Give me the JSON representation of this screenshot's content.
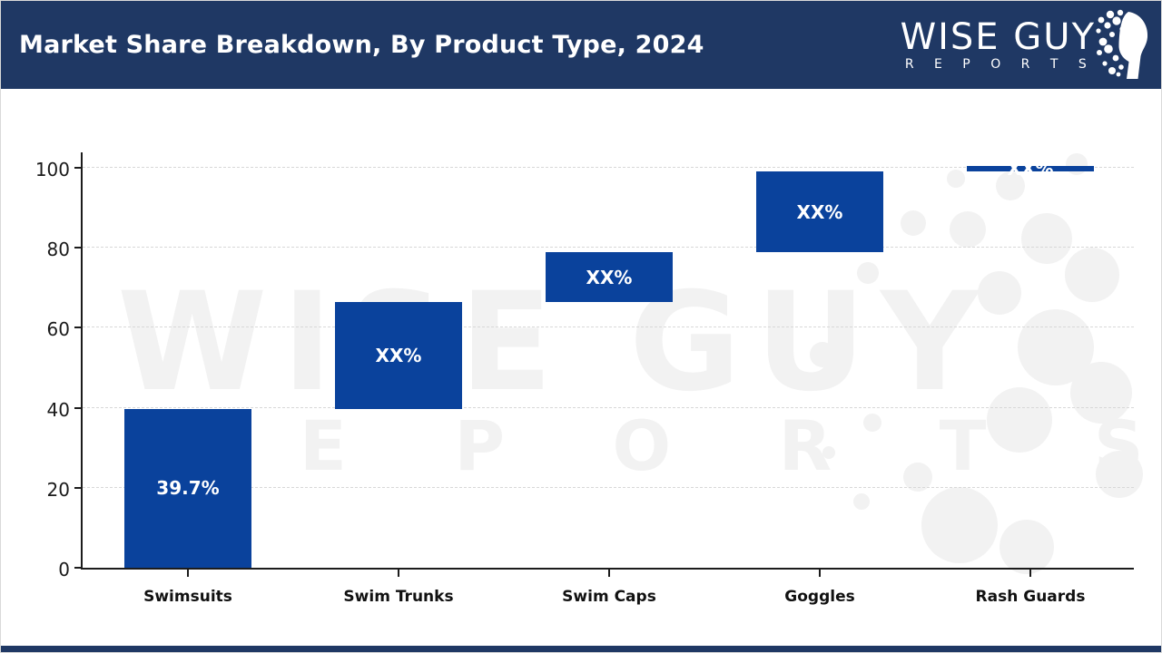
{
  "header": {
    "title": "Market Share Breakdown, By Product Type, 2024",
    "logo": {
      "line1": "WISE GUY",
      "line2": "R E P O R T S"
    }
  },
  "watermark": {
    "line1": "WISE GUY",
    "line2": "R E P O R T S"
  },
  "chart_data": {
    "type": "bar",
    "subtype": "waterfall",
    "title": "Market Share Breakdown, By Product Type, 2024",
    "xlabel": "",
    "ylabel": "",
    "categories": [
      "Swimsuits",
      "Swim Trunks",
      "Swim Caps",
      "Goggles",
      "Rash Guards"
    ],
    "segments": [
      {
        "category": "Swimsuits",
        "start": 0,
        "end": 39.7,
        "label": "39.7%"
      },
      {
        "category": "Swim Trunks",
        "start": 39.7,
        "end": 66.4,
        "label": "XX%"
      },
      {
        "category": "Swim Caps",
        "start": 66.4,
        "end": 78.8,
        "label": "XX%"
      },
      {
        "category": "Goggles",
        "start": 78.8,
        "end": 99.0,
        "label": "XX%"
      },
      {
        "category": "Rash Guards",
        "start": 99.0,
        "end": 100.4,
        "label": "XX%"
      }
    ],
    "yticks": [
      0,
      20,
      40,
      60,
      80,
      100
    ],
    "ylim": [
      0,
      104.3
    ],
    "grid": "dashed-horizontal",
    "legend": "none",
    "colors": {
      "bar": "#0a429c",
      "bar_label": "#ffffff",
      "grid_line": "#d8d8d8",
      "axis": "#1c1c1c",
      "header_bg": "#1f3864",
      "watermark": "#f2f2f2"
    }
  }
}
